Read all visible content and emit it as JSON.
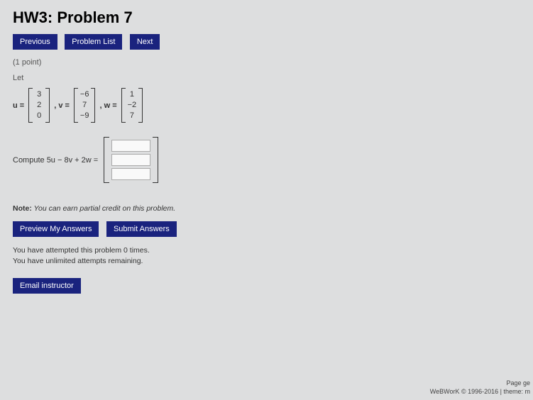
{
  "title": "HW3: Problem 7",
  "nav": {
    "previous": "Previous",
    "problem_list": "Problem List",
    "next": "Next"
  },
  "points": "(1 point)",
  "let": "Let",
  "vectors": {
    "u_label": "u =",
    "u": [
      "3",
      "2",
      "0"
    ],
    "v_label": ", v =",
    "v": [
      "−6",
      "7",
      "−9"
    ],
    "w_label": ", w =",
    "w": [
      "1",
      "−2",
      "7"
    ]
  },
  "compute_text": "Compute 5u − 8v + 2w =",
  "note": {
    "bold": "Note:",
    "rest": " You can earn partial credit on this problem."
  },
  "actions": {
    "preview": "Preview My Answers",
    "submit": "Submit Answers"
  },
  "attempts": {
    "line1": "You have attempted this problem 0 times.",
    "line2": "You have unlimited attempts remaining."
  },
  "email": "Email instructor",
  "footer": {
    "line1": "Page ge",
    "line2": "WeBWorK © 1996-2016 | theme: m"
  },
  "colors": {
    "button_bg": "#1a237e",
    "page_bg": "#dddedf"
  }
}
